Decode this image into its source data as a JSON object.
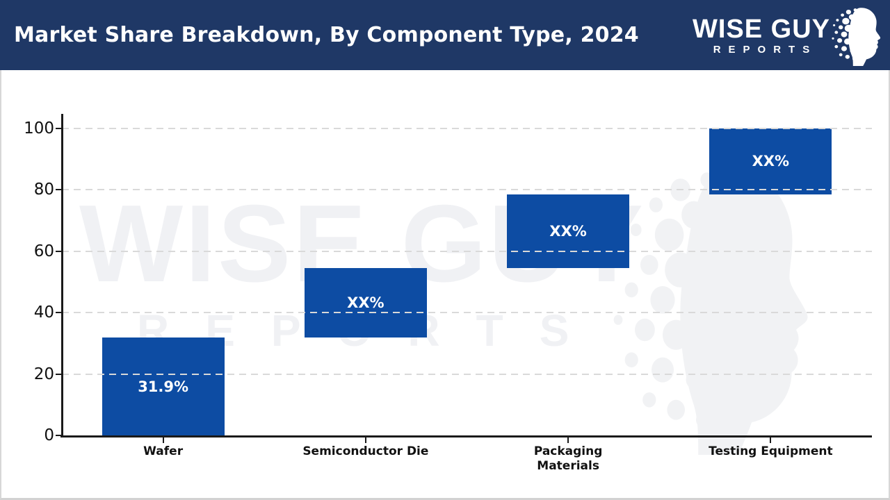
{
  "header": {
    "title": "Market Share Breakdown, By Component Type, 2024",
    "logo": {
      "wordmark": "WISE GUY",
      "subtitle": "REPORTS"
    }
  },
  "watermark": {
    "wordmark": "WISE GUY",
    "subtitle": "REPORTS"
  },
  "chart_data": {
    "type": "bar",
    "subtype": "waterfall",
    "title": "Market Share Breakdown, By Component Type, 2024",
    "categories": [
      "Wafer",
      "Semiconductor Die",
      "Packaging\nMaterials",
      "Testing Equipment"
    ],
    "series": [
      {
        "name": "Market share (%)",
        "segments": [
          {
            "category": "Wafer",
            "start": 0,
            "end": 31.9,
            "label": "31.9%"
          },
          {
            "category": "Semiconductor Die",
            "start": 31.9,
            "end": 54.6,
            "label": "XX%"
          },
          {
            "category": "Packaging Materials",
            "start": 54.6,
            "end": 78.6,
            "label": "XX%"
          },
          {
            "category": "Testing Equipment",
            "start": 78.6,
            "end": 100,
            "label": "XX%"
          }
        ]
      }
    ],
    "xlabel": "",
    "ylabel": "",
    "ylim": [
      0,
      100
    ],
    "yticks": [
      0,
      20,
      40,
      60,
      80,
      100
    ],
    "grid": "horizontal-dashed-above-bars",
    "legend": "none",
    "bar_color": "#0d4ca3",
    "bar_label_color": "#ffffff"
  },
  "colors": {
    "header_bg": "#1f3866",
    "header_text": "#ffffff",
    "bar": "#0d4ca3",
    "watermark": "#f0f1f4",
    "gridline": "#d9d9d9",
    "axis": "#1a1a1a",
    "tick_label": "#111111"
  }
}
